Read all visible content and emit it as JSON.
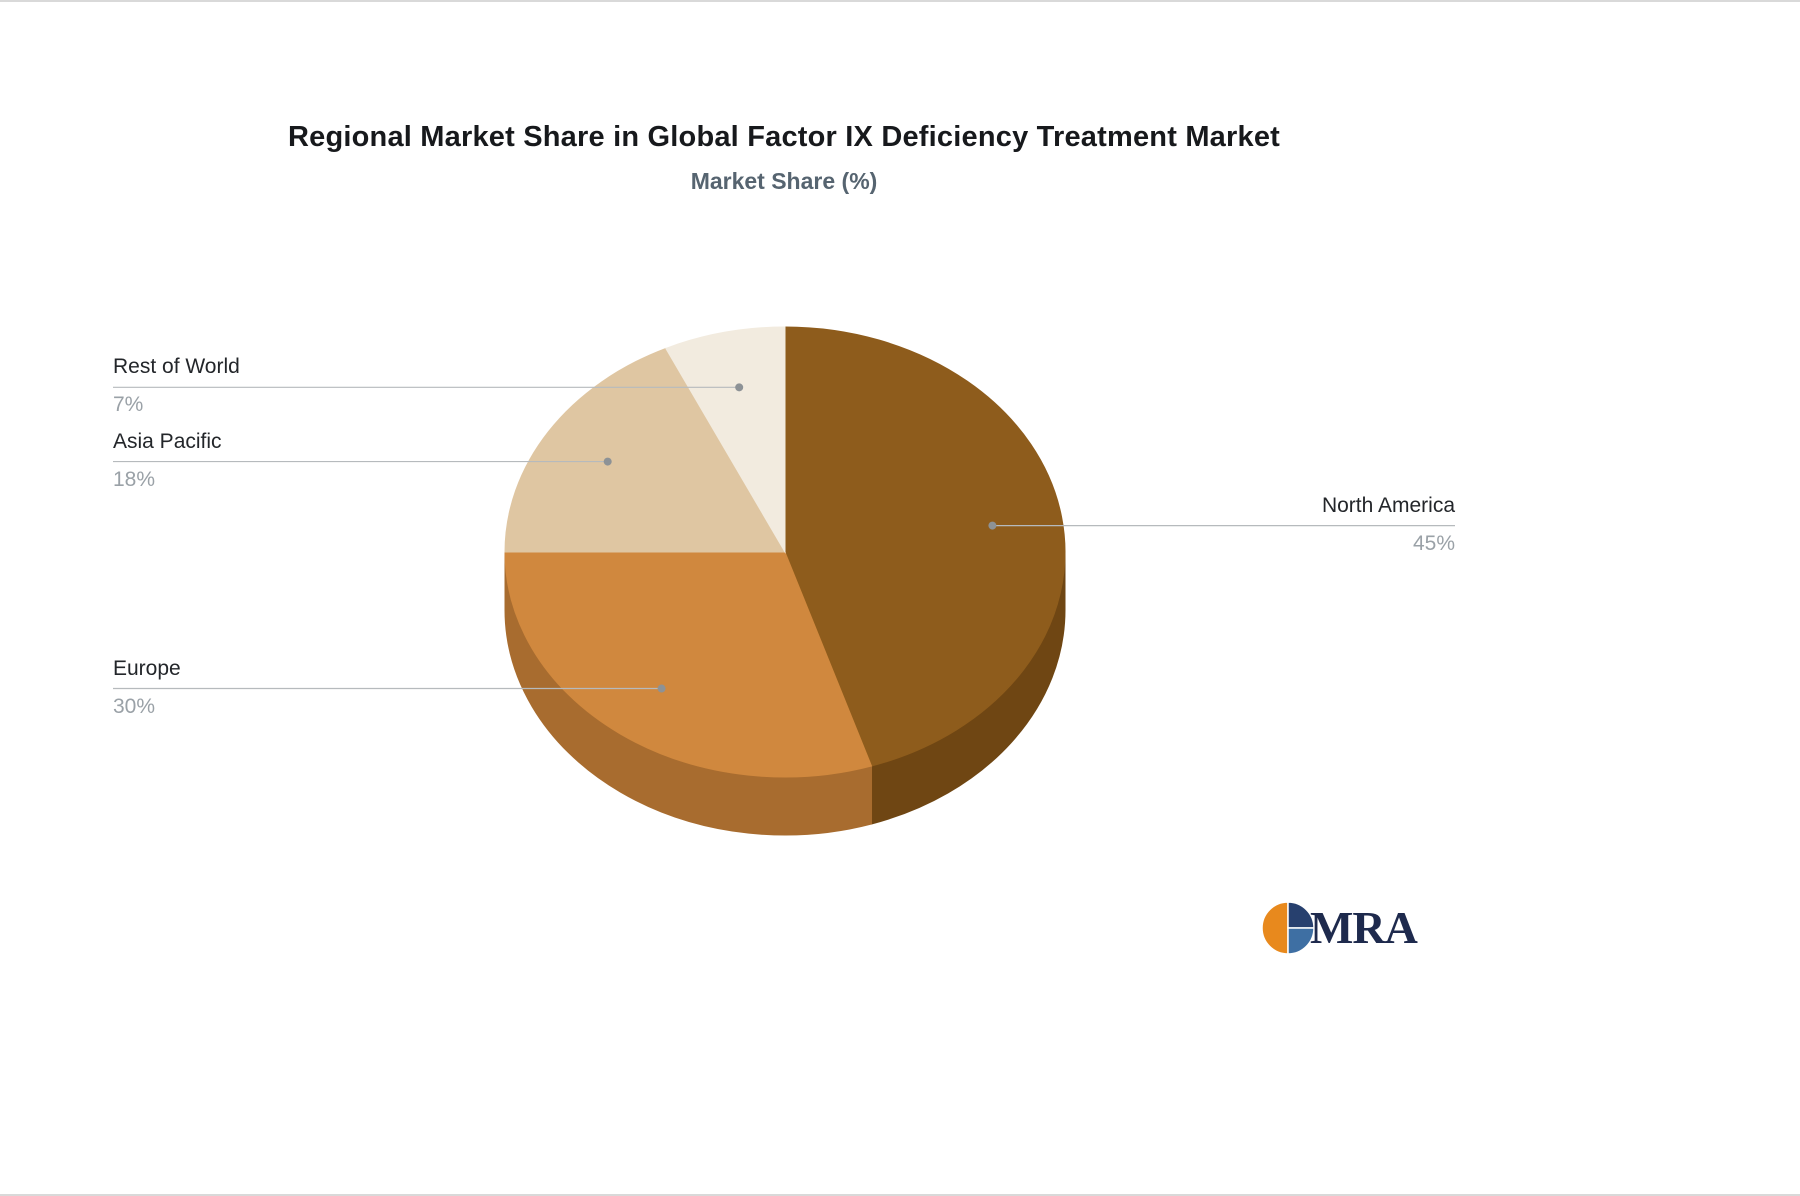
{
  "chart_data": {
    "type": "pie",
    "title": "Regional Market Share in Global Factor IX Deficiency Treatment Market",
    "subtitle": "Market Share (%)",
    "unit": "%",
    "effect": "3d",
    "direction": "clockwise",
    "start_angle_deg": 0,
    "legend_position": "none",
    "slices": [
      {
        "label": "North America",
        "value": 45,
        "display": "45%",
        "color": "#8E5C1C",
        "side_color": "#6F4613",
        "label_side": "right"
      },
      {
        "label": "Europe",
        "value": 30,
        "display": "30%",
        "color": "#D0883E",
        "side_color": "#A86C2F",
        "label_side": "left"
      },
      {
        "label": "Asia Pacific",
        "value": 18,
        "display": "18%",
        "color": "#DFC6A2",
        "side_color": "#BFA381",
        "label_side": "left"
      },
      {
        "label": "Rest of World",
        "value": 7,
        "display": "7%",
        "color": "#F2EBDF",
        "side_color": "#D6C9B4",
        "label_side": "left"
      }
    ]
  },
  "branding": {
    "logo_text": "MRA",
    "logo_colors": {
      "orange": "#E8891D",
      "navy": "#27406E",
      "blue": "#3E6FA3",
      "text": "#1E2A4D"
    }
  }
}
